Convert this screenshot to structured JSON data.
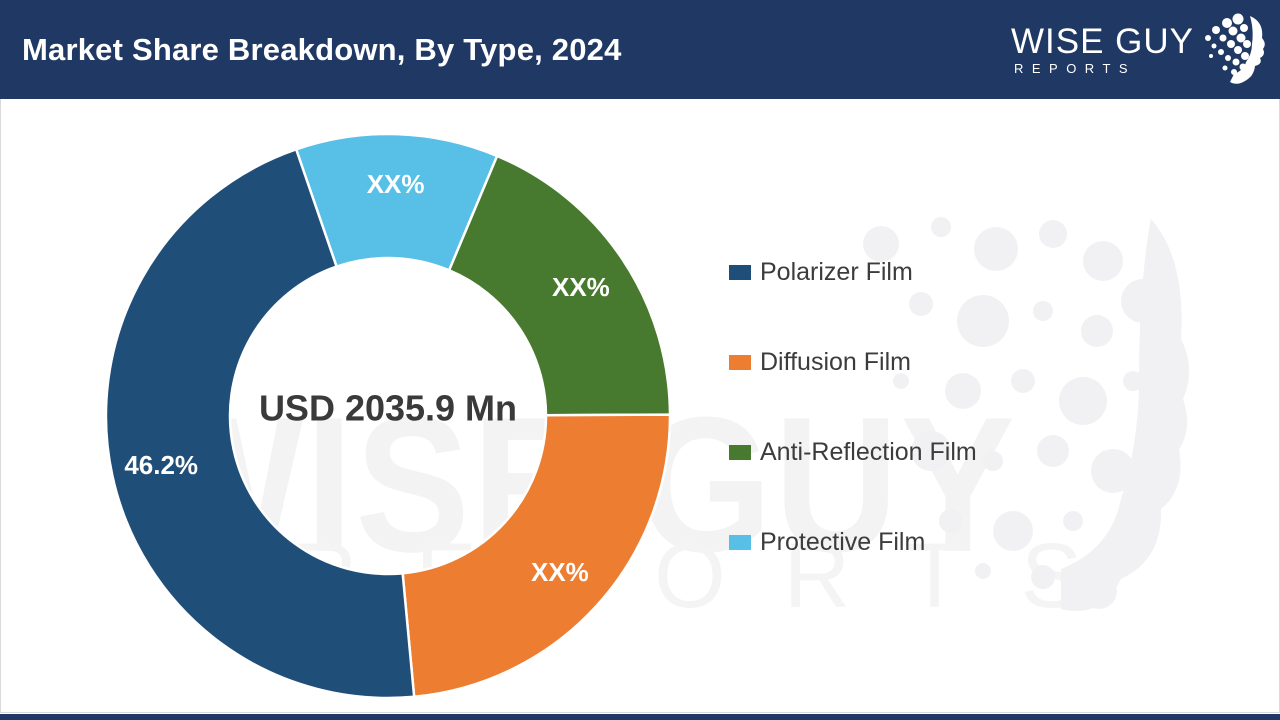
{
  "header": {
    "title": "Market Share Breakdown, By Type, 2024",
    "bg_color": "#203864"
  },
  "logo": {
    "line1": "WISE GUY",
    "line2": "REPORTS"
  },
  "watermark": {
    "line1": "WISE GUY",
    "line2": "REPORTS"
  },
  "chart_data": {
    "type": "pie",
    "subtype": "donut",
    "title": "Market Share Breakdown, By Type, 2024",
    "center_label": "USD 2035.9 Mn",
    "start_angle_deg": -19,
    "legend_position": "right",
    "segments": [
      {
        "name": "Protective Film",
        "display_label": "XX%",
        "value_pct_est": 11.6,
        "color": "#58bfe6"
      },
      {
        "name": "Anti-Reflection Film",
        "display_label": "XX%",
        "value_pct_est": 18.6,
        "color": "#47792e"
      },
      {
        "name": "Diffusion Film",
        "display_label": "XX%",
        "value_pct_est": 23.6,
        "color": "#ed7d31"
      },
      {
        "name": "Polarizer Film",
        "display_label": "46.2%",
        "value_pct_est": 46.2,
        "color": "#1f4e78"
      }
    ],
    "legend": [
      {
        "label": "Polarizer Film",
        "color": "#1f4e78"
      },
      {
        "label": "Diffusion Film",
        "color": "#ed7d31"
      },
      {
        "label": "Anti-Reflection Film",
        "color": "#47792e"
      },
      {
        "label": "Protective Film",
        "color": "#58bfe6"
      }
    ]
  }
}
